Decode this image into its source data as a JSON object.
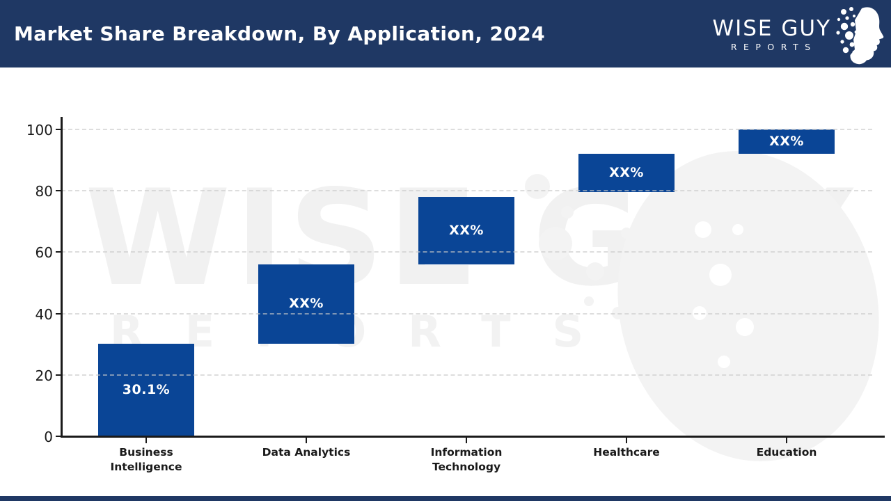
{
  "header": {
    "title": "Market Share Breakdown, By Application, 2024",
    "bg_color": "#1f3864",
    "logo": {
      "wordmark": "WISE GUY",
      "subtitle": "REPORTS"
    }
  },
  "watermark": {
    "wordmark": "WISE GUY",
    "subtitle": "REPORTS"
  },
  "footer": {
    "bg_color": "#1f3864"
  },
  "chart_data": {
    "type": "bar",
    "subtype": "waterfall",
    "title": "Market Share Breakdown, By Application, 2024",
    "xlabel": "",
    "ylabel": "",
    "ylim": [
      0,
      100
    ],
    "y_ticks": [
      0,
      20,
      40,
      60,
      80,
      100
    ],
    "grid": "horizontal-dashed",
    "legend": "none",
    "bar_color": "#0a4596",
    "value_label_color": "#ffffff",
    "categories": [
      "Business Intelligence",
      "Data Analytics",
      "Information Technology",
      "Healthcare",
      "Education"
    ],
    "category_lines": [
      [
        "Business",
        "Intelligence"
      ],
      [
        "Data Analytics"
      ],
      [
        "Information",
        "Technology"
      ],
      [
        "Healthcare"
      ],
      [
        "Education"
      ]
    ],
    "segments": [
      {
        "category": "Business Intelligence",
        "start": 0,
        "end": 30.1,
        "label": "30.1%"
      },
      {
        "category": "Data Analytics",
        "start": 30.1,
        "end": 56,
        "label": "XX%"
      },
      {
        "category": "Information Technology",
        "start": 56,
        "end": 78,
        "label": "XX%"
      },
      {
        "category": "Healthcare",
        "start": 79.5,
        "end": 92,
        "label": "XX%"
      },
      {
        "category": "Education",
        "start": 92,
        "end": 100,
        "label": "XX%"
      }
    ]
  }
}
